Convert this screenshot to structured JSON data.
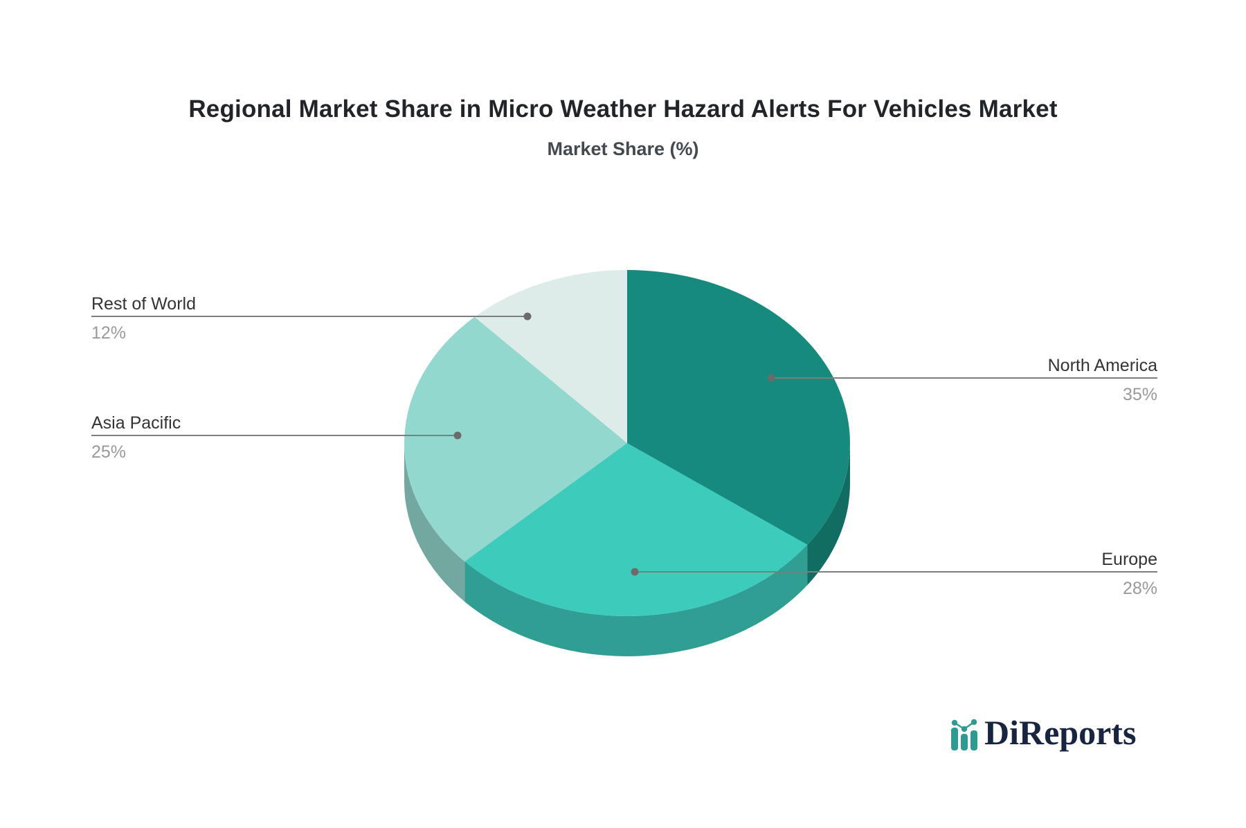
{
  "title": "Regional Market Share in Micro Weather Hazard Alerts For Vehicles Market",
  "subtitle": "Market Share (%)",
  "chart_data": {
    "type": "pie",
    "style": "3d",
    "title": "Regional Market Share in Micro Weather Hazard Alerts For Vehicles Market",
    "subtitle": "Market Share (%)",
    "unit": "%",
    "start_angle_deg": 0,
    "direction": "clockwise",
    "legend_position": "connector-labels",
    "slices": [
      {
        "label": "North America",
        "value": 35,
        "pct_label": "35%",
        "color": "#168B7D"
      },
      {
        "label": "Europe",
        "value": 28,
        "pct_label": "28%",
        "color": "#3DCBBB"
      },
      {
        "label": "Asia Pacific",
        "value": 25,
        "pct_label": "25%",
        "color": "#93D8CE"
      },
      {
        "label": "Rest of World",
        "value": 12,
        "pct_label": "12%",
        "color": "#DEECE9"
      }
    ],
    "colors": {
      "label_name": "#333333",
      "label_value": "#999999",
      "leader_line": "#7d7d7d",
      "leader_dot": "#6b6b6b"
    }
  },
  "logo": {
    "text": "DiReports",
    "icon": "bar-line-chart-icon",
    "icon_color": "#2E9B93",
    "text_color": "#172540"
  }
}
